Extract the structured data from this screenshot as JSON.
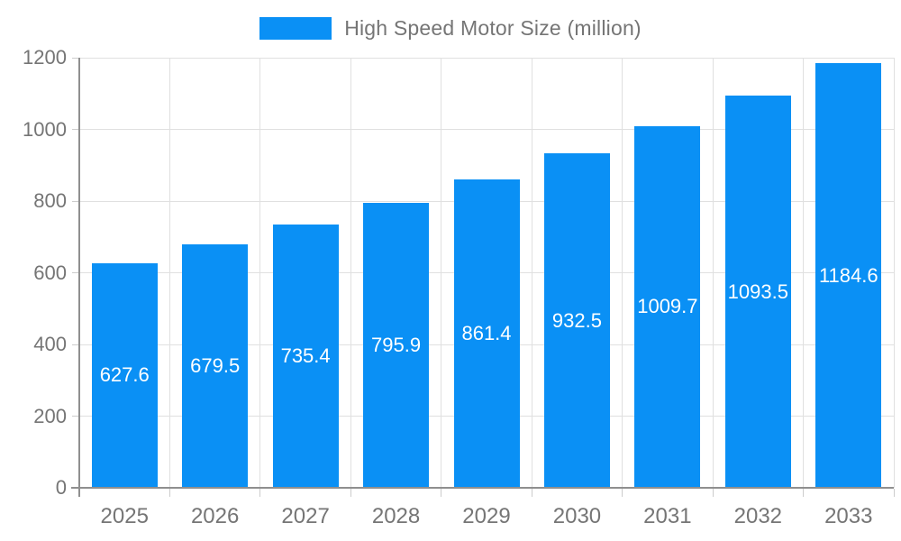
{
  "legend": {
    "label": "High Speed Motor Size (million)"
  },
  "colors": {
    "bar": "#0a90f5",
    "value_label": "#ffffff",
    "axis_text": "#757575",
    "grid": "#e0e0e0",
    "axis_line": "#8f8f8f",
    "tick": "#cccccc"
  },
  "chart_data": {
    "type": "bar",
    "title": "High Speed Motor Size (million)",
    "categories": [
      "2025",
      "2026",
      "2027",
      "2028",
      "2029",
      "2030",
      "2031",
      "2032",
      "2033"
    ],
    "values": [
      627.6,
      679.5,
      735.4,
      795.9,
      861.4,
      932.5,
      1009.7,
      1093.5,
      1184.6
    ],
    "value_labels": [
      "627.6",
      "679.5",
      "735.4",
      "795.9",
      "861.4",
      "932.5",
      "1009.7",
      "1093.5",
      "1184.6"
    ],
    "xlabel": "",
    "ylabel": "",
    "ylim": [
      0,
      1200
    ],
    "yticks": [
      0,
      200,
      400,
      600,
      800,
      1000,
      1200
    ],
    "grid": true,
    "legend_position": "top",
    "bar_color": "#0a90f5",
    "value_label_position": "inside-center"
  }
}
